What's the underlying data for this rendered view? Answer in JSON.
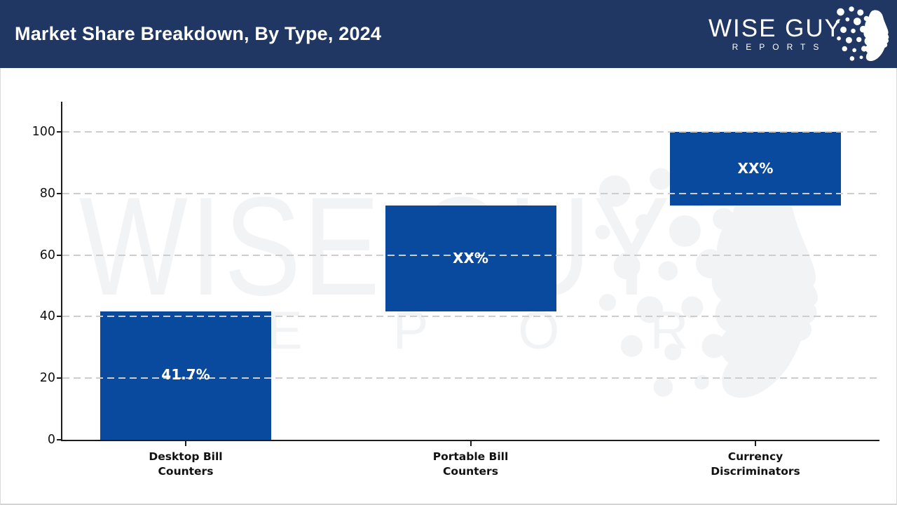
{
  "header": {
    "title": "Market Share Breakdown, By Type, 2024",
    "bg_color": "#203764",
    "logo": {
      "line1": "WISE GUY",
      "line2": "REPORTS"
    }
  },
  "watermark": {
    "line1": "WISE GUY",
    "line2": "R E P O R T S"
  },
  "chart_data": {
    "type": "bar",
    "variant": "waterfall",
    "title": "Market Share Breakdown, By Type, 2024",
    "categories": [
      "Desktop Bill Counters",
      "Portable Bill Counters",
      "Currency Discriminators"
    ],
    "category_lines": [
      [
        "Desktop Bill",
        "Counters"
      ],
      [
        "Portable Bill",
        "Counters"
      ],
      [
        "Currency",
        "Discriminators"
      ]
    ],
    "segments": [
      {
        "start": 0,
        "end": 41.7,
        "label": "41.7%"
      },
      {
        "start": 41.7,
        "end": 76,
        "label": "XX%"
      },
      {
        "start": 76,
        "end": 100,
        "label": "XX%"
      }
    ],
    "yticks": [
      0,
      20,
      40,
      60,
      80,
      100
    ],
    "ylim": [
      0,
      110
    ],
    "grid": "horizontal-dashed",
    "bar_color": "#0a4a9e",
    "bar_label_color": "#ffffff",
    "gridline_color": "#cdcdcd",
    "axis_color": "#1c1c1c",
    "legend": "none"
  }
}
